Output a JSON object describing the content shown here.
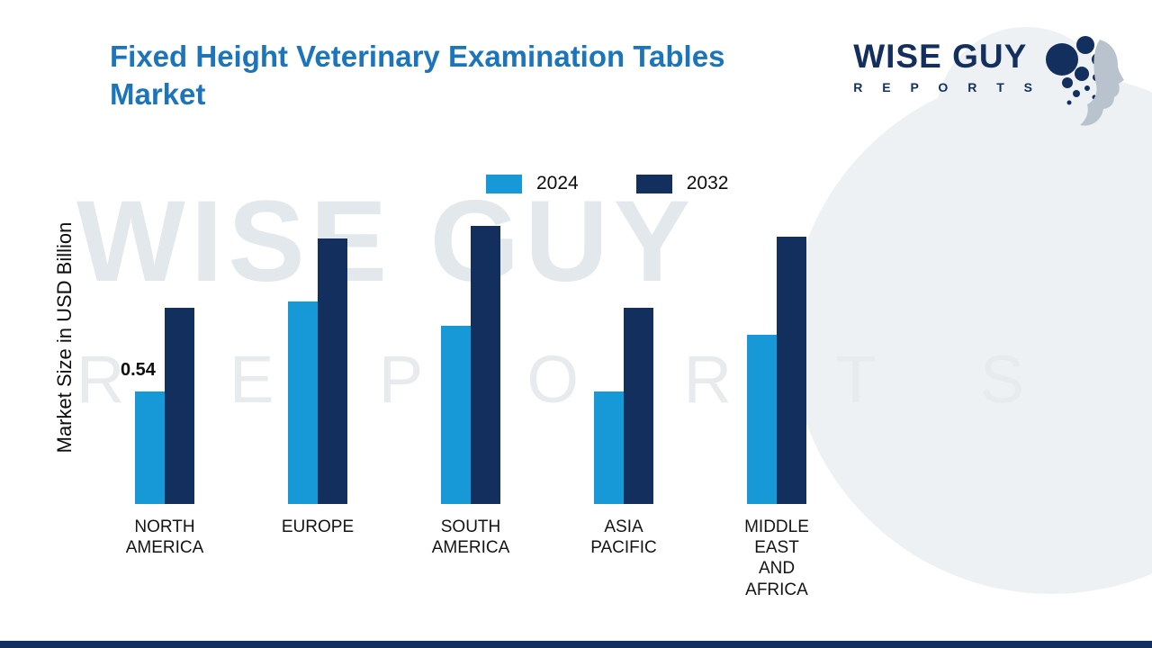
{
  "title": "Fixed Height Veterinary Examination Tables Market",
  "logo": {
    "line1": "WISE GUY",
    "line2": "R E P O R T S"
  },
  "watermark": {
    "line1": "WISE GUY",
    "line2": "R E P O R T S"
  },
  "colors": {
    "title_blue": "#1c75bb",
    "navy": "#132f5e",
    "light_blue": "#1799d8",
    "watermark_gray": "#e3e8ec"
  },
  "chart_data": {
    "type": "bar",
    "title": "Fixed Height Veterinary Examination Tables Market",
    "ylabel": "Market Size in USD Billion",
    "xlabel": "",
    "ylim": [
      0,
      1.42
    ],
    "grid": false,
    "legend_position": "top",
    "categories": [
      "NORTH AMERICA",
      "EUROPE",
      "SOUTH AMERICA",
      "ASIA PACIFIC",
      "MIDDLE EAST AND AFRICA"
    ],
    "category_lines": [
      [
        "NORTH",
        "AMERICA"
      ],
      [
        "EUROPE"
      ],
      [
        "SOUTH",
        "AMERICA"
      ],
      [
        "ASIA",
        "PACIFIC"
      ],
      [
        "MIDDLE",
        "EAST",
        "AND",
        "AFRICA"
      ]
    ],
    "series": [
      {
        "name": "2024",
        "color": "#1799d8",
        "values": [
          0.54,
          0.97,
          0.85,
          0.54,
          0.81
        ]
      },
      {
        "name": "2032",
        "color": "#132f5e",
        "values": [
          0.94,
          1.27,
          1.33,
          0.94,
          1.28
        ]
      }
    ],
    "data_labels": [
      {
        "series_index": 0,
        "category_index": 0,
        "text": "0.54"
      }
    ]
  }
}
